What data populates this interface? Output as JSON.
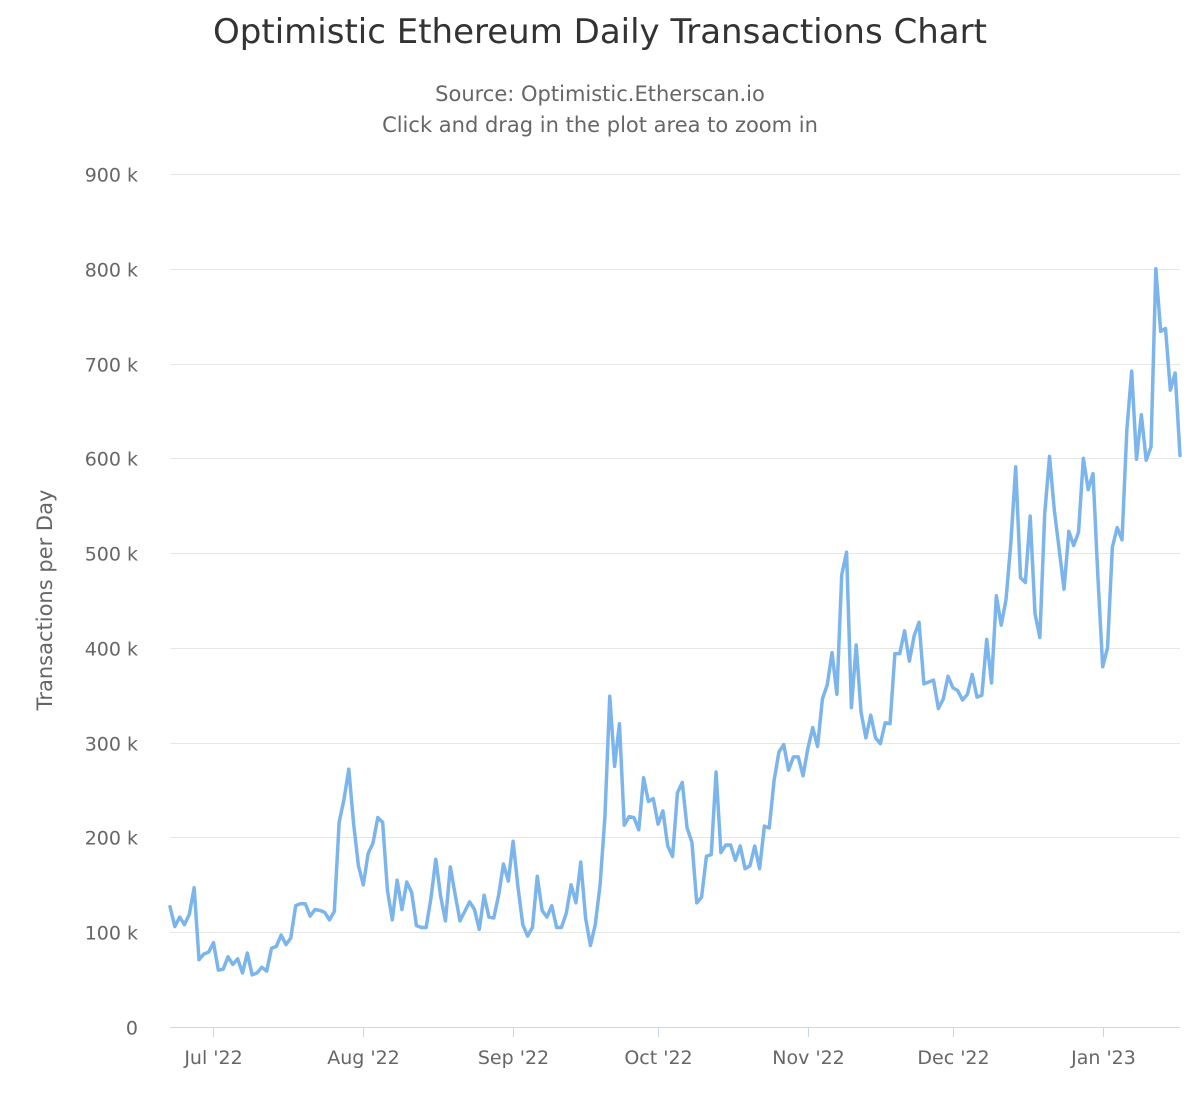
{
  "chart_data": {
    "type": "line",
    "title": "Optimistic Ethereum Daily Transactions Chart",
    "subtitle": "Source: Optimistic.Etherscan.io",
    "subtitle2": "Click and drag in the plot area to zoom in",
    "xlabel": "",
    "ylabel": "Transactions per Day",
    "ylim": [
      0,
      900000
    ],
    "yticks": [
      {
        "value": 0,
        "label": "0"
      },
      {
        "value": 100000,
        "label": "100 k"
      },
      {
        "value": 200000,
        "label": "200 k"
      },
      {
        "value": 300000,
        "label": "300 k"
      },
      {
        "value": 400000,
        "label": "400 k"
      },
      {
        "value": 500000,
        "label": "500 k"
      },
      {
        "value": 600000,
        "label": "600 k"
      },
      {
        "value": 700000,
        "label": "700 k"
      },
      {
        "value": 800000,
        "label": "800 k"
      },
      {
        "value": 900000,
        "label": "900 k"
      }
    ],
    "x_start": "2022-06-22",
    "x_end": "2023-01-16",
    "xticks": [
      {
        "day": 9,
        "label": "Jul '22"
      },
      {
        "day": 40,
        "label": "Aug '22"
      },
      {
        "day": 71,
        "label": "Sep '22"
      },
      {
        "day": 101,
        "label": "Oct '22"
      },
      {
        "day": 132,
        "label": "Nov '22"
      },
      {
        "day": 162,
        "label": "Dec '22"
      },
      {
        "day": 193,
        "label": "Jan '23"
      }
    ],
    "series": [
      {
        "name": "Transactions",
        "color": "#7cb5ec",
        "start": "2022-06-22",
        "values": [
          127000,
          106000,
          116000,
          108000,
          119000,
          147000,
          71000,
          77000,
          79000,
          89000,
          60000,
          61000,
          74000,
          66000,
          72000,
          57000,
          78000,
          55000,
          57000,
          63000,
          59000,
          83000,
          85000,
          97000,
          87000,
          94000,
          128000,
          130000,
          130000,
          117000,
          124000,
          123000,
          121000,
          113000,
          122000,
          216000,
          240000,
          272000,
          214000,
          170000,
          150000,
          183000,
          194000,
          221000,
          216000,
          144000,
          113000,
          155000,
          124000,
          153000,
          142000,
          107000,
          105000,
          105000,
          136000,
          177000,
          138000,
          112000,
          169000,
          140000,
          112000,
          122000,
          132000,
          124000,
          103000,
          139000,
          116000,
          115000,
          139000,
          172000,
          154000,
          196000,
          148000,
          108000,
          96000,
          105000,
          159000,
          123000,
          116000,
          128000,
          105000,
          105000,
          120000,
          150000,
          131000,
          174000,
          115000,
          86000,
          108000,
          150000,
          222000,
          349000,
          275000,
          320000,
          213000,
          222000,
          221000,
          208000,
          263000,
          238000,
          241000,
          214000,
          228000,
          191000,
          180000,
          247000,
          258000,
          210000,
          195000,
          131000,
          137000,
          180000,
          182000,
          269000,
          184000,
          192000,
          192000,
          176000,
          191000,
          167000,
          170000,
          191000,
          167000,
          212000,
          210000,
          260000,
          290000,
          298000,
          271000,
          285000,
          285000,
          265000,
          294000,
          316000,
          296000,
          346000,
          361000,
          395000,
          351000,
          477000,
          501000,
          337000,
          403000,
          332000,
          305000,
          329000,
          305000,
          299000,
          321000,
          320000,
          394000,
          394000,
          418000,
          386000,
          413000,
          427000,
          362000,
          364000,
          366000,
          336000,
          346000,
          370000,
          358000,
          355000,
          345000,
          351000,
          372000,
          348000,
          350000,
          409000,
          363000,
          455000,
          424000,
          451000,
          511000,
          591000,
          474000,
          469000,
          539000,
          436000,
          411000,
          541000,
          602000,
          545000,
          504000,
          462000,
          523000,
          508000,
          522000,
          600000,
          567000,
          584000,
          476000,
          380000,
          400000,
          506000,
          527000,
          514000,
          630000,
          692000,
          599000,
          646000,
          598000,
          612000,
          800000,
          734000,
          737000,
          672000,
          690000,
          603000
        ]
      }
    ]
  }
}
